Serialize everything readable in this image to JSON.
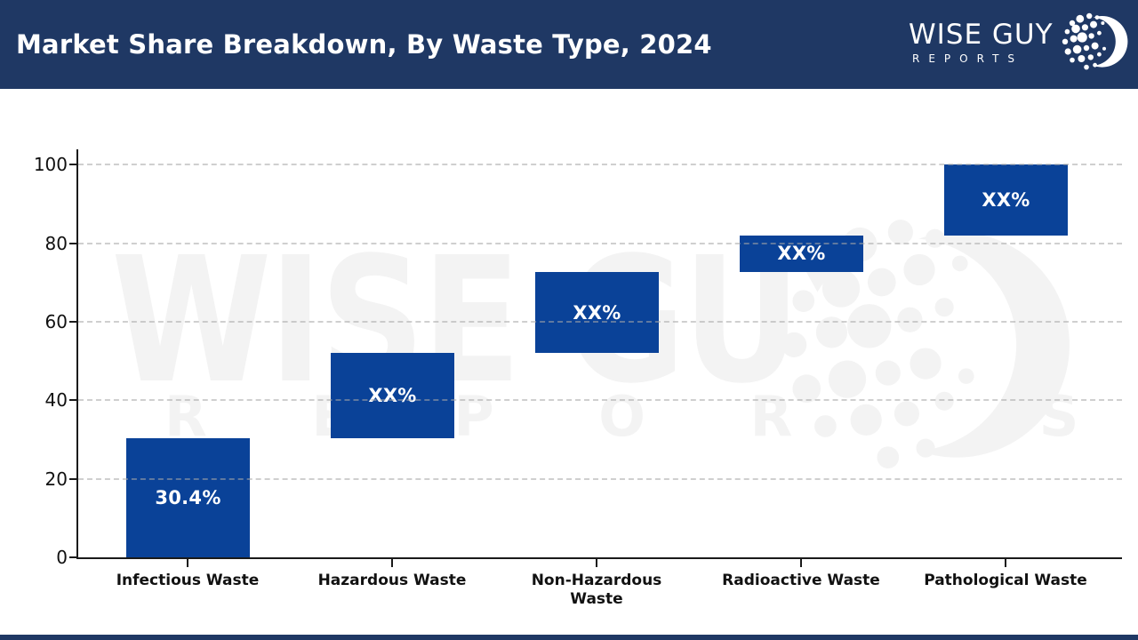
{
  "header": {
    "title": "Market Share Breakdown, By Waste Type, 2024",
    "logo": {
      "wordmark": "WISE GUY",
      "subtitle": "REPORTS"
    }
  },
  "watermark": {
    "wordmark": "WISE GUY",
    "subtitle": "R E P O R T S"
  },
  "colors": {
    "header_bg": "#1f3864",
    "footer_bg": "#1f3864",
    "bar": "#0a4298",
    "bar_label": "#ffffff",
    "grid": "#d6d6d6",
    "axis": "#1a1a1a",
    "tick_label": "#111111",
    "title_text": "#ffffff",
    "watermark": "#f3f3f3"
  },
  "chart_data": {
    "type": "bar",
    "subtype": "waterfall",
    "title": "Market Share Breakdown, By Waste Type, 2024",
    "xlabel": "",
    "ylabel": "",
    "ylim": [
      0,
      105
    ],
    "yticks": [
      0,
      20,
      40,
      60,
      80,
      100
    ],
    "grid": "horizontal-dashed",
    "legend": "none",
    "categories": [
      "Infectious Waste",
      "Hazardous Waste",
      "Non-Hazardous\nWaste",
      "Radioactive Waste",
      "Pathological Waste"
    ],
    "segments": [
      {
        "category": "Infectious Waste",
        "base": 0,
        "top": 30.4,
        "label": "30.4%"
      },
      {
        "category": "Hazardous Waste",
        "base": 30.4,
        "top": 52.0,
        "label": "XX%"
      },
      {
        "category": "Non-Hazardous Waste",
        "base": 52.0,
        "top": 72.7,
        "label": "XX%"
      },
      {
        "category": "Radioactive Waste",
        "base": 72.7,
        "top": 82.0,
        "label": "XX%"
      },
      {
        "category": "Pathological Waste",
        "base": 82.0,
        "top": 100.0,
        "label": "XX%"
      }
    ]
  }
}
